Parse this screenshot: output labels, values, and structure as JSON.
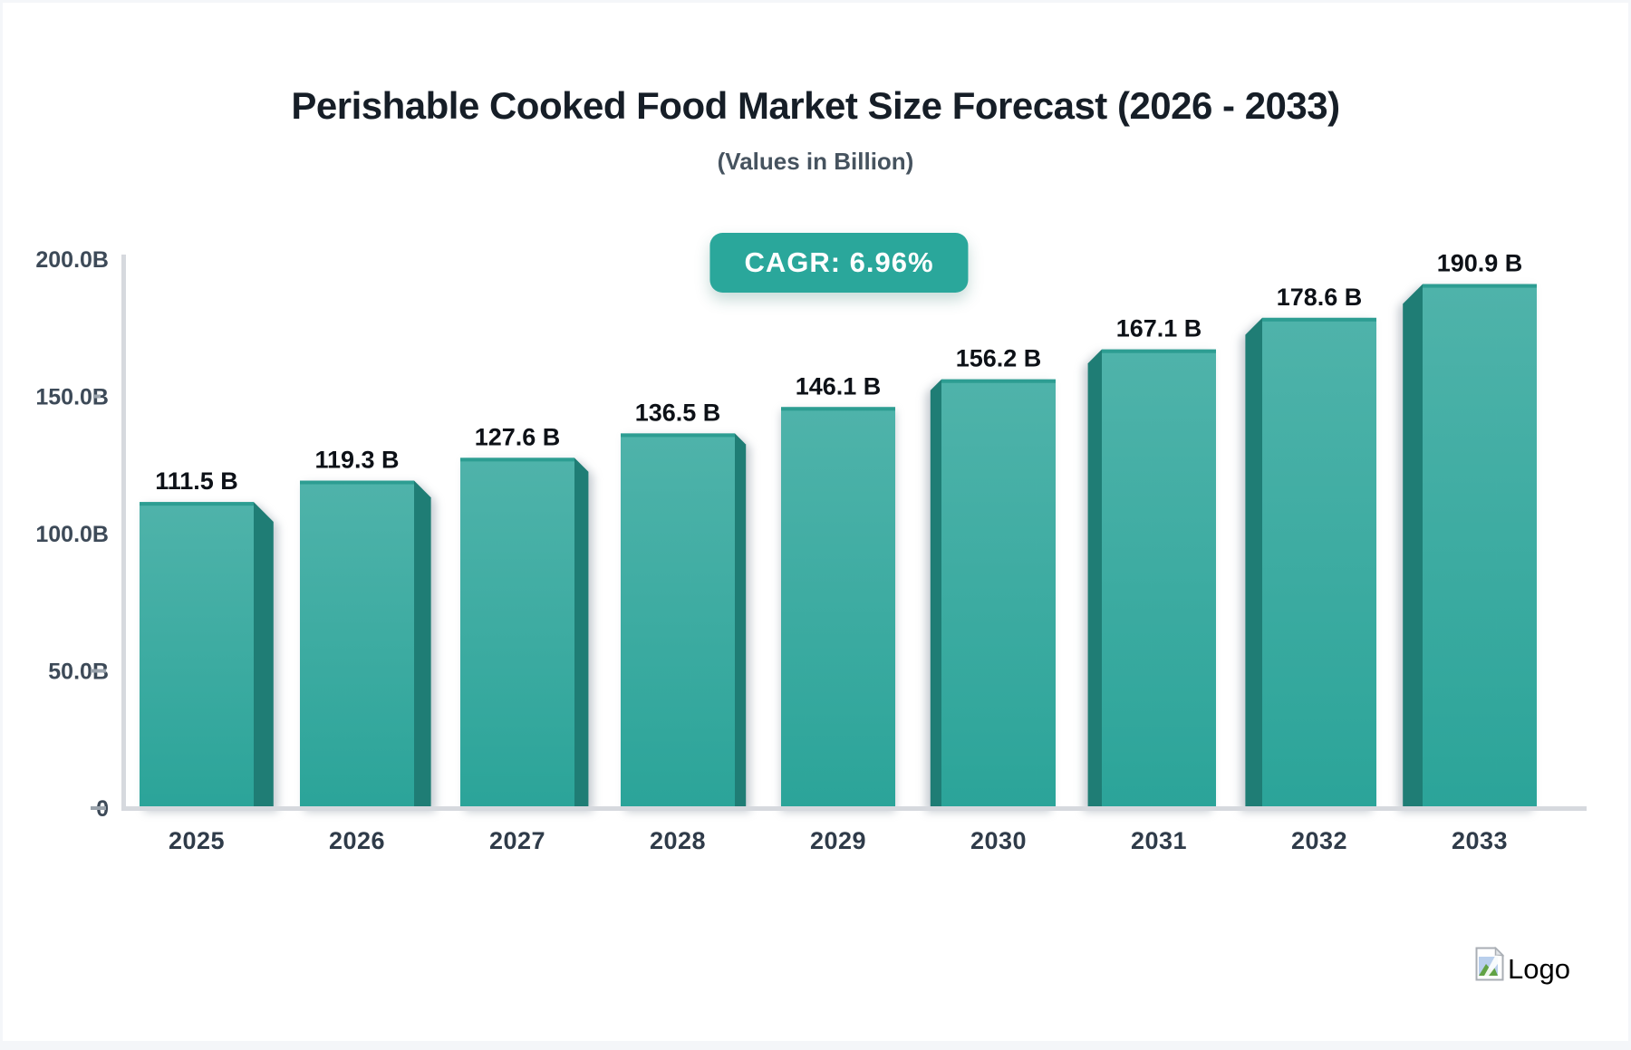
{
  "header": {
    "title": "Perishable Cooked Food Market Size Forecast (2026 - 2033)",
    "subtitle": "(Values in Billion)"
  },
  "cagr": {
    "label": "CAGR: 6.96%",
    "background": "#2aa79b",
    "text_color": "#ffffff"
  },
  "chart_data": {
    "type": "bar",
    "title": "Perishable Cooked Food Market Size Forecast (2026 - 2033)",
    "subtitle": "(Values in Billion)",
    "categories": [
      "2025",
      "2026",
      "2027",
      "2028",
      "2029",
      "2030",
      "2031",
      "2032",
      "2033"
    ],
    "values": [
      111.5,
      119.3,
      127.6,
      136.5,
      146.1,
      156.2,
      167.1,
      178.6,
      190.9
    ],
    "value_labels": [
      "111.5 B",
      "119.3 B",
      "127.6 B",
      "136.5 B",
      "146.1 B",
      "156.2 B",
      "167.1 B",
      "178.6 B",
      "190.9 B"
    ],
    "unit": "Billion",
    "xlabel": "",
    "ylabel": "",
    "ylim": [
      0,
      200
    ],
    "yticks": {
      "values": [
        0,
        50,
        100,
        150,
        200
      ],
      "labels": [
        "0",
        "50.0B",
        "100.0B",
        "150.0B",
        "200.0B"
      ]
    },
    "grid": false,
    "legend": false,
    "colors": {
      "bar_face_top": "#4fb3aa",
      "bar_face_bottom": "#2ba499",
      "bar_top_edge": "#2d9d92",
      "bar_side": "#1f7d75",
      "axis_line": "#d6d9de",
      "tick_dash": "#9aa3ac"
    }
  },
  "footer": {
    "logo_alt": "Logo"
  }
}
